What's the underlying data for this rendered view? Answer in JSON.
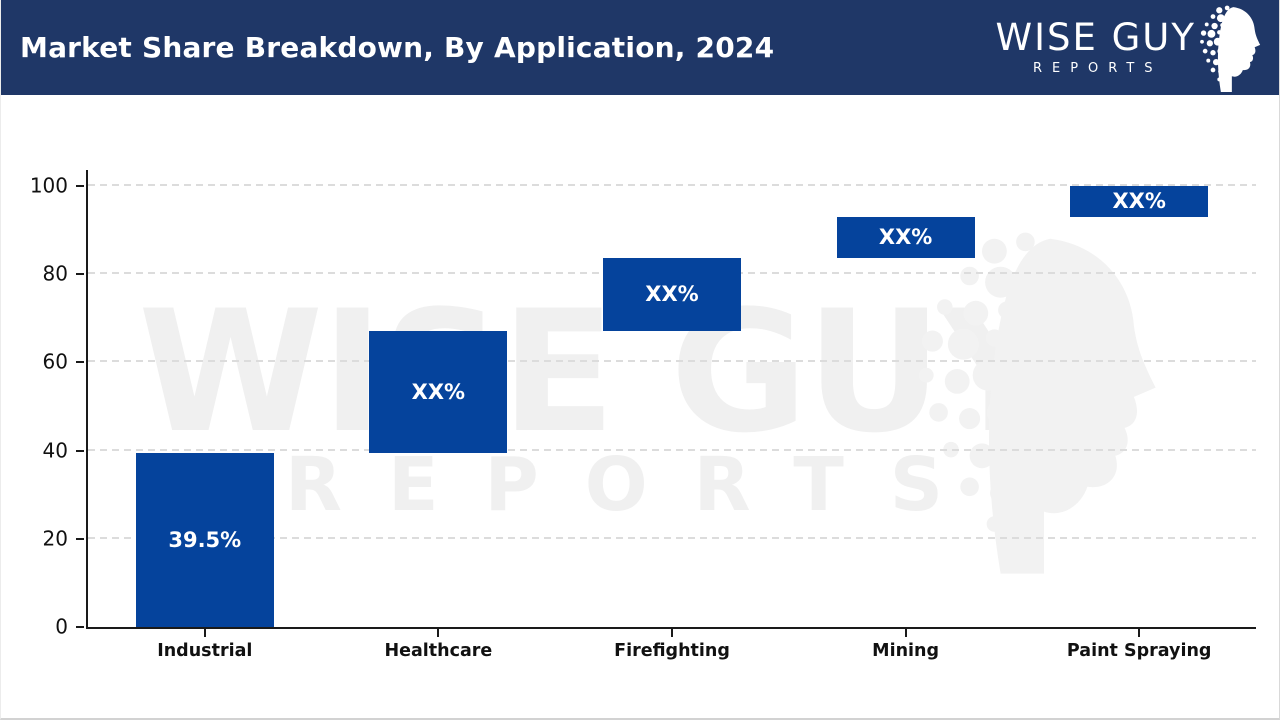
{
  "header": {
    "title": "Market Share Breakdown, By Application, 2024",
    "logo": {
      "name": "WISE GUY",
      "subtext": "REPORTS"
    },
    "bg_color": "#1f3767"
  },
  "watermark": {
    "line1": "WISE GUY",
    "line2": "REPORTS"
  },
  "colors": {
    "header_bg": "#1f3767",
    "bar": "#05439c",
    "bar_label": "#ffffff",
    "grid": "#dcdcdc",
    "axis": "#1a1a1a",
    "watermark": "#f0f0f0",
    "page_border": "#d9d9d9"
  },
  "chart_data": {
    "type": "bar",
    "variant": "floating_waterfall",
    "title": "Market Share Breakdown, By Application, 2024",
    "categories": [
      "Industrial",
      "Healthcare",
      "Firefighting",
      "Mining",
      "Paint Spraying"
    ],
    "series": [
      {
        "name": "Market Share",
        "starts": [
          0,
          39.5,
          67.2,
          83.7,
          93.0
        ],
        "ends": [
          39.5,
          67.2,
          83.7,
          93.0,
          100.0
        ],
        "labels": [
          "39.5%",
          "XX%",
          "XX%",
          "XX%",
          "XX%"
        ]
      }
    ],
    "ylim": [
      0,
      100
    ],
    "yticks": [
      0,
      20,
      40,
      60,
      80,
      100
    ],
    "xlabel": "",
    "ylabel": "",
    "grid": "horizontal-dashed",
    "legend": "none",
    "bar_color": "#05439c"
  }
}
